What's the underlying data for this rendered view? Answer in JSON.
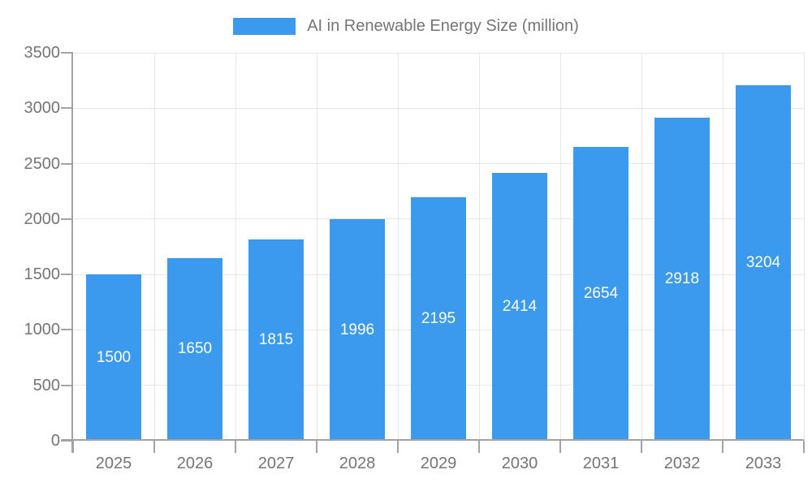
{
  "chart_data": {
    "type": "bar",
    "title": "AI in Renewable Energy Size (million)",
    "categories": [
      "2025",
      "2026",
      "2027",
      "2028",
      "2029",
      "2030",
      "2031",
      "2032",
      "2033"
    ],
    "values": [
      1500,
      1650,
      1815,
      1996,
      2195,
      2414,
      2654,
      2918,
      3204
    ],
    "xlabel": "",
    "ylabel": "",
    "ylim": [
      0,
      3500
    ],
    "yticks": [
      0,
      500,
      1000,
      1500,
      2000,
      2500,
      3000,
      3500
    ],
    "grid": true,
    "legend_position": "top",
    "value_labels": "inside-center"
  },
  "legend": {
    "label": "AI in Renewable Energy Size (million)"
  },
  "colors": {
    "bar": "#3b99ee",
    "bar_value_text": "#ffffff",
    "axis_text": "#757575",
    "legend_text": "#757575",
    "gridline": "#e6e6e6",
    "axis_line": "#a3a3a3",
    "background": "#ffffff"
  }
}
